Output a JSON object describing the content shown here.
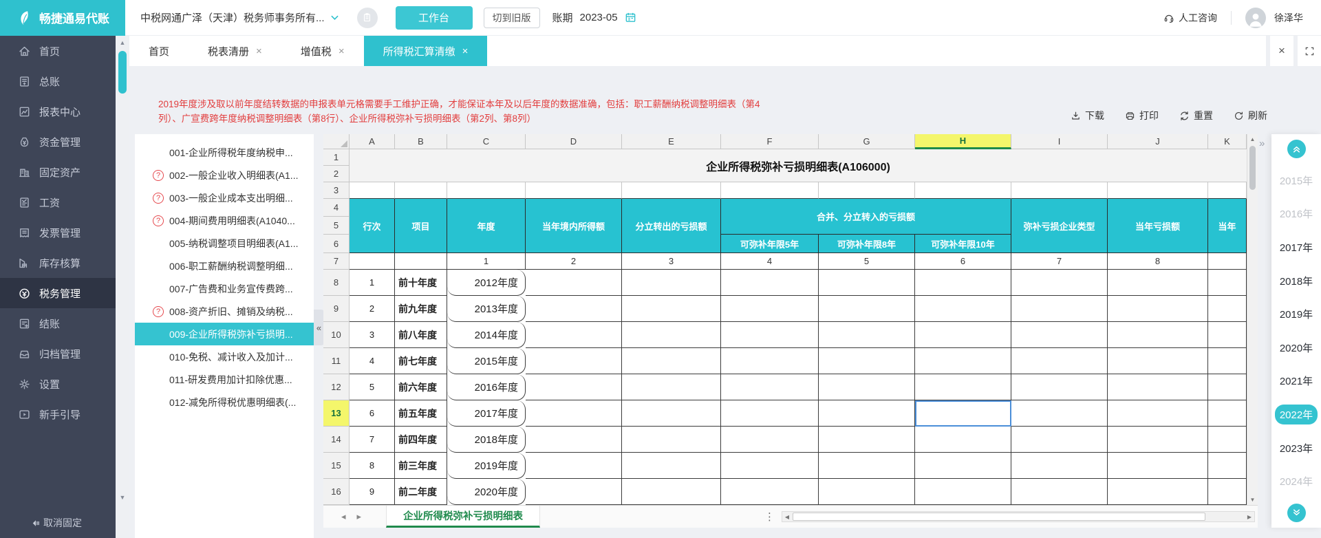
{
  "header": {
    "brand": "畅捷通易代账",
    "company": "中税网通广泽（天津）税务师事务所有...",
    "workbench_label": "工作台",
    "switch_old_label": "切到旧版",
    "period_label": "账期",
    "period_value": "2023-05",
    "support_label": "人工咨询",
    "user_name": "徐泽华",
    "accent_color": "#2fc1ce"
  },
  "sidebar": {
    "items": [
      {
        "icon": "home",
        "label": "首页",
        "active": false
      },
      {
        "icon": "ledger",
        "label": "总账",
        "active": false
      },
      {
        "icon": "report",
        "label": "报表中心",
        "active": false
      },
      {
        "icon": "fund",
        "label": "资金管理",
        "active": false
      },
      {
        "icon": "asset",
        "label": "固定资产",
        "active": false
      },
      {
        "icon": "wage",
        "label": "工资",
        "active": false
      },
      {
        "icon": "invoice",
        "label": "发票管理",
        "active": false
      },
      {
        "icon": "inventory",
        "label": "库存核算",
        "active": false
      },
      {
        "icon": "tax",
        "label": "税务管理",
        "active": true
      },
      {
        "icon": "closing",
        "label": "结账",
        "active": false
      },
      {
        "icon": "archive",
        "label": "归档管理",
        "active": false
      },
      {
        "icon": "settings",
        "label": "设置",
        "active": false
      },
      {
        "icon": "guide",
        "label": "新手引导",
        "active": false
      }
    ],
    "unpin_label": "取消固定"
  },
  "tabs": [
    {
      "label": "首页",
      "closable": false,
      "active": false
    },
    {
      "label": "税表清册",
      "closable": true,
      "active": false
    },
    {
      "label": "增值税",
      "closable": true,
      "active": false
    },
    {
      "label": "所得税汇算清缴",
      "closable": true,
      "active": true
    }
  ],
  "notice": {
    "line1": "2019年度涉及取以前年度结转数据的申报表单元格需要手工维护正确，才能保证本年及以后年度的数据准确，包括：职工薪酬纳税调整明细表（第4",
    "line2": "列）、广宣费跨年度纳税调整明细表（第8行）、企业所得税弥补亏损明细表（第2列、第8列）"
  },
  "toolbar": {
    "download": "下载",
    "print": "打印",
    "reset": "重置",
    "refresh": "刷新"
  },
  "report_list": {
    "items": [
      {
        "label": "001-企业所得税年度纳税申...",
        "warn": false,
        "active": false
      },
      {
        "label": "002-一般企业收入明细表(A1...",
        "warn": true,
        "active": false
      },
      {
        "label": "003-一般企业成本支出明细...",
        "warn": true,
        "active": false
      },
      {
        "label": "004-期间费用明细表(A1040...",
        "warn": true,
        "active": false
      },
      {
        "label": "005-纳税调整项目明细表(A1...",
        "warn": false,
        "active": false
      },
      {
        "label": "006-职工薪酬纳税调整明细...",
        "warn": false,
        "active": false
      },
      {
        "label": "007-广告费和业务宣传费跨...",
        "warn": false,
        "active": false
      },
      {
        "label": "008-资产折旧、摊销及纳税...",
        "warn": true,
        "active": false
      },
      {
        "label": "009-企业所得税弥补亏损明...",
        "warn": false,
        "active": true
      },
      {
        "label": "010-免税、减计收入及加计...",
        "warn": false,
        "active": false
      },
      {
        "label": "011-研发费用加计扣除优惠...",
        "warn": false,
        "active": false
      },
      {
        "label": "012-减免所得税优惠明细表(...",
        "warn": false,
        "active": false
      }
    ],
    "collapse_glyph": "«",
    "expand_glyph": "»"
  },
  "spreadsheet": {
    "title": "企业所得税弥补亏损明细表(A106000)",
    "column_letters": [
      "A",
      "B",
      "C",
      "D",
      "E",
      "F",
      "G",
      "H",
      "I",
      "J",
      "K"
    ],
    "highlighted_column": "H",
    "highlighted_row": 13,
    "visible_row_count": 16,
    "selected_cell": {
      "column": "H",
      "row": 13
    },
    "header": {
      "col_headers": [
        "行次",
        "项目",
        "年度",
        "当年境内所得额",
        "分立转出的亏损额"
      ],
      "merge_header": "合并、分立转入的亏损额",
      "merge_sub": [
        "可弥补年限5年",
        "可弥补年限8年",
        "可弥补年限10年"
      ],
      "tail_headers": [
        "弥补亏损企业类型",
        "当年亏损额",
        "当年"
      ]
    },
    "index_row": [
      "",
      "",
      "1",
      "2",
      "3",
      "4",
      "5",
      "6",
      "7",
      "8",
      ""
    ],
    "rows": [
      {
        "no": "1",
        "item": "前十年度",
        "year": "2012年度"
      },
      {
        "no": "2",
        "item": "前九年度",
        "year": "2013年度"
      },
      {
        "no": "3",
        "item": "前八年度",
        "year": "2014年度"
      },
      {
        "no": "4",
        "item": "前七年度",
        "year": "2015年度"
      },
      {
        "no": "5",
        "item": "前六年度",
        "year": "2016年度"
      },
      {
        "no": "6",
        "item": "前五年度",
        "year": "2017年度"
      },
      {
        "no": "7",
        "item": "前四年度",
        "year": "2018年度"
      },
      {
        "no": "8",
        "item": "前三年度",
        "year": "2019年度"
      },
      {
        "no": "9",
        "item": "前二年度",
        "year": "2020年度"
      }
    ],
    "sheet_tab": "企业所得税弥补亏损明细表"
  },
  "year_panel": {
    "years": [
      {
        "label": "2015年",
        "state": "disabled"
      },
      {
        "label": "2016年",
        "state": "disabled"
      },
      {
        "label": "2017年",
        "state": "normal"
      },
      {
        "label": "2018年",
        "state": "normal"
      },
      {
        "label": "2019年",
        "state": "normal"
      },
      {
        "label": "2020年",
        "state": "normal"
      },
      {
        "label": "2021年",
        "state": "normal"
      },
      {
        "label": "2022年",
        "state": "active"
      },
      {
        "label": "2023年",
        "state": "normal"
      },
      {
        "label": "2024年",
        "state": "disabled"
      }
    ]
  }
}
